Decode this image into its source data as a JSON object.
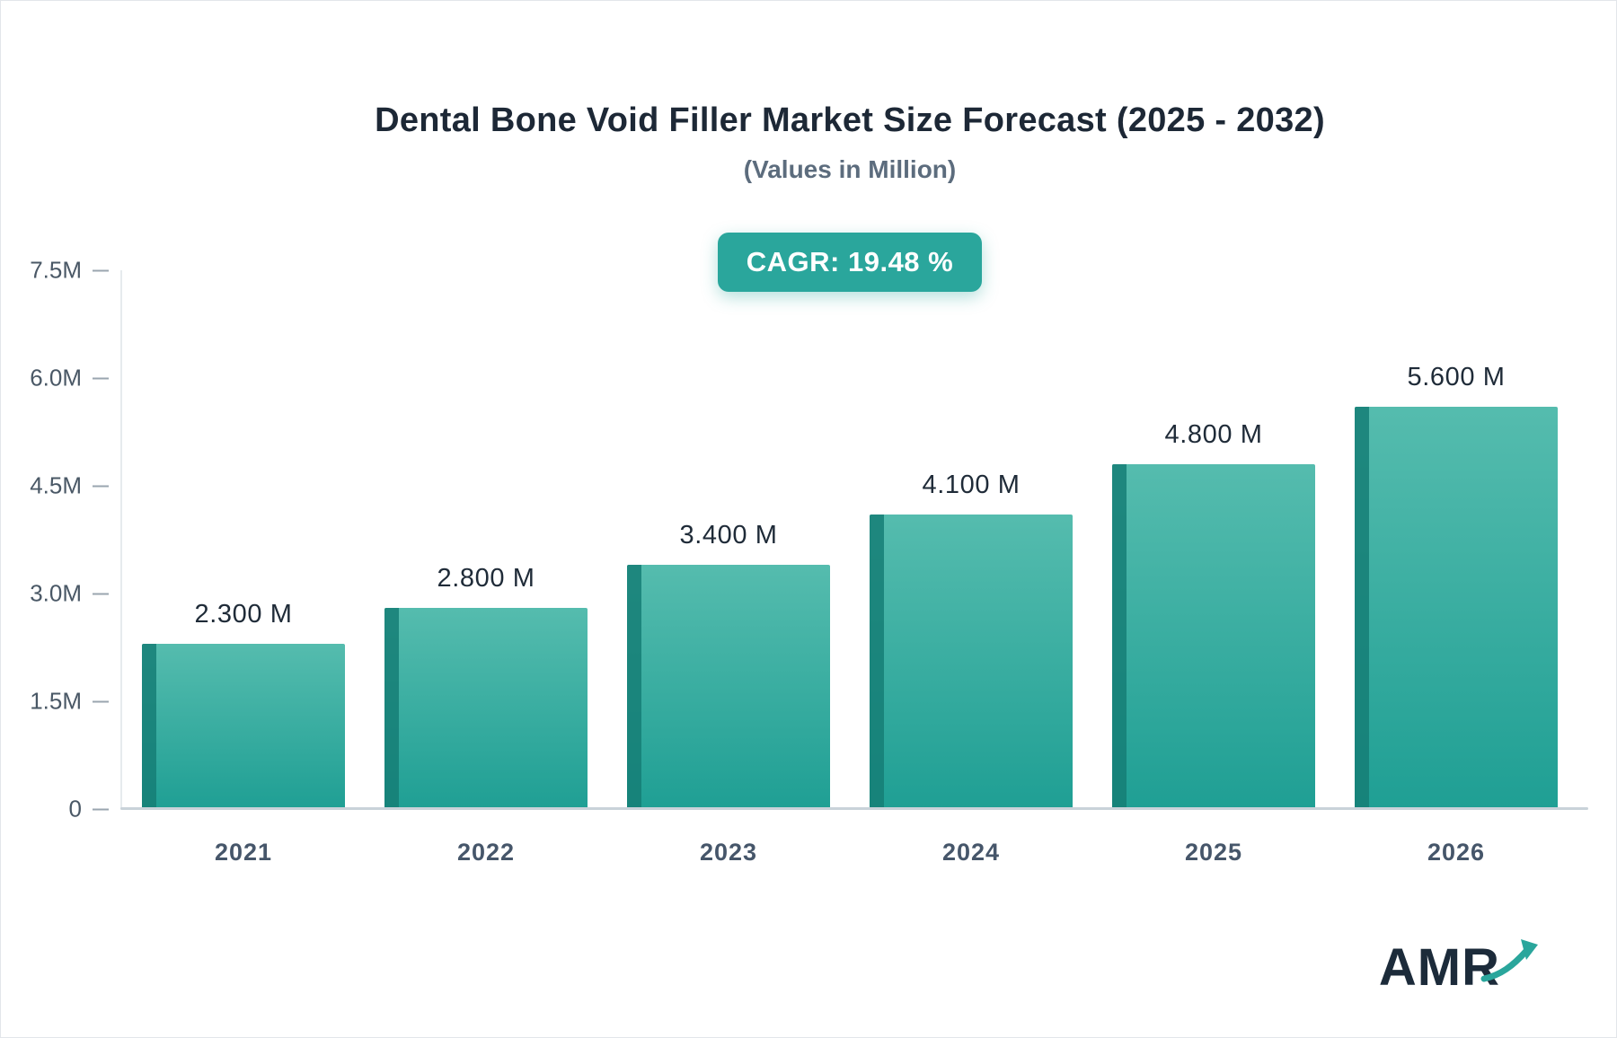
{
  "title": "Dental Bone Void Filler Market Size Forecast (2025 - 2032)",
  "subtitle": "(Values in Million)",
  "badge": {
    "label": "CAGR: 19.48 %"
  },
  "logo": {
    "text": "AMR"
  },
  "chart_data": {
    "type": "bar",
    "title": "Dental Bone Void Filler Market Size Forecast (2025 - 2032)",
    "subtitle": "(Values in Million)",
    "unit": "Million",
    "cagr": "19.48 %",
    "categories": [
      "2021",
      "2022",
      "2023",
      "2024",
      "2025",
      "2026"
    ],
    "values": [
      2.3,
      2.8,
      3.4,
      4.1,
      4.8,
      5.6
    ],
    "value_labels": [
      "2.300 M",
      "2.800 M",
      "3.400 M",
      "4.100 M",
      "4.800 M",
      "5.600 M"
    ],
    "ylim": [
      0,
      7.5
    ],
    "yticks": [
      {
        "label": "7.5M",
        "value": 7.5
      },
      {
        "label": "6.0M",
        "value": 6.0
      },
      {
        "label": "4.5M",
        "value": 4.5
      },
      {
        "label": "3.0M",
        "value": 3.0
      },
      {
        "label": "1.5M",
        "value": 1.5
      },
      {
        "label": "0",
        "value": 0
      }
    ],
    "grid": false,
    "legend": false,
    "colors": {
      "bar_gradient_top": "#55bcae",
      "bar_gradient_bottom": "#1f9f94",
      "bar_side_shade": "#157e76",
      "badge_background": "#2aa69c",
      "title_text": "#1d2836",
      "axis_text": "#4a5866",
      "logo_text": "#1c2b3a",
      "logo_arrow": "#2aa69c"
    }
  }
}
